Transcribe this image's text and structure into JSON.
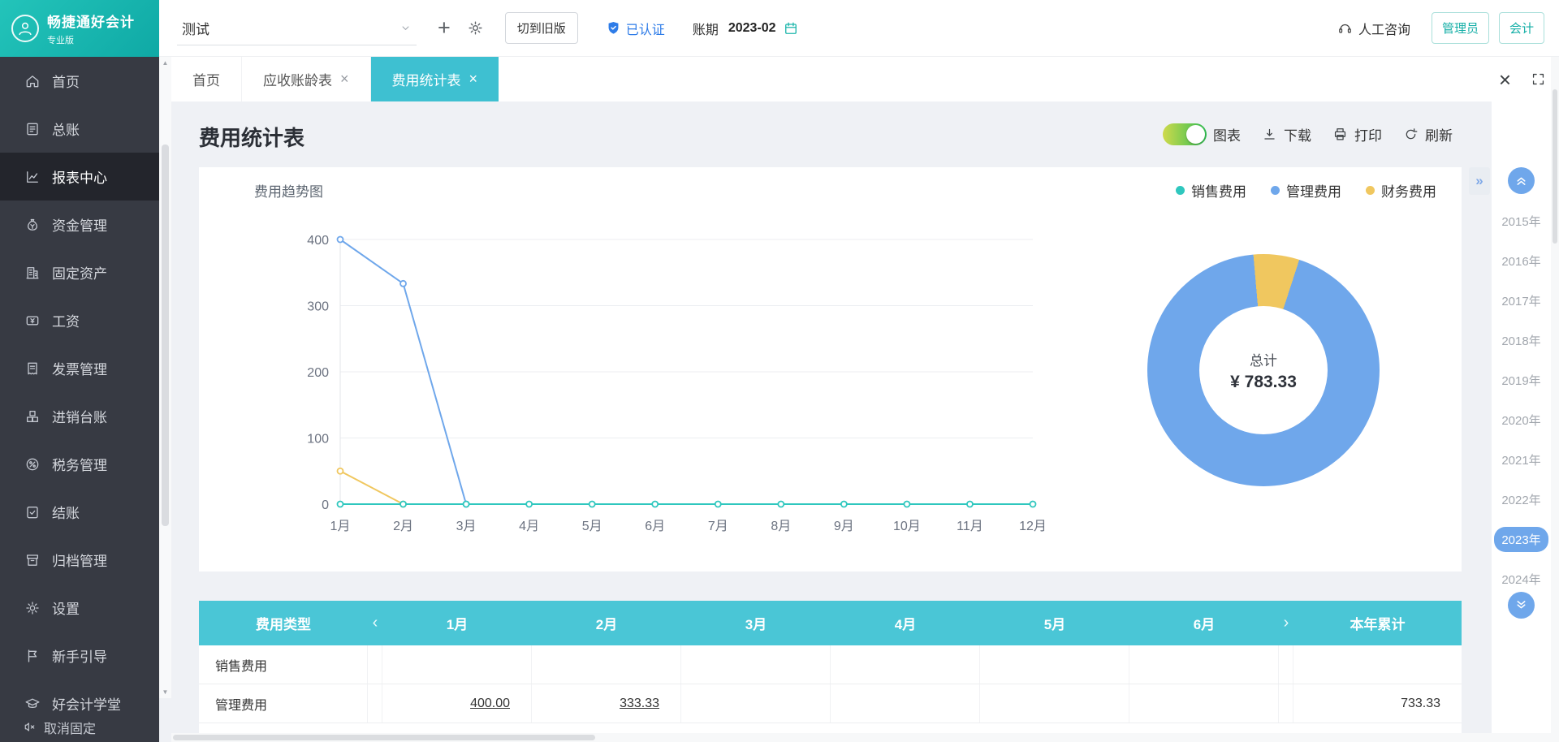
{
  "header": {
    "logo_title": "畅捷通好会计",
    "logo_subtitle": "专业版",
    "company": "测试",
    "switch_old": "切到旧版",
    "certified": "已认证",
    "period_label": "账期",
    "period_value": "2023-02",
    "support": "人工咨询",
    "admin": "管理员",
    "role": "会计"
  },
  "sidebar": {
    "items": [
      {
        "label": "首页",
        "icon": "home-icon",
        "active": false
      },
      {
        "label": "总账",
        "icon": "ledger-icon",
        "active": false
      },
      {
        "label": "报表中心",
        "icon": "report-icon",
        "active": true
      },
      {
        "label": "资金管理",
        "icon": "funds-icon",
        "active": false
      },
      {
        "label": "固定资产",
        "icon": "asset-icon",
        "active": false
      },
      {
        "label": "工资",
        "icon": "salary-icon",
        "active": false
      },
      {
        "label": "发票管理",
        "icon": "invoice-icon",
        "active": false
      },
      {
        "label": "进销台账",
        "icon": "inventory-icon",
        "active": false
      },
      {
        "label": "税务管理",
        "icon": "tax-icon",
        "active": false
      },
      {
        "label": "结账",
        "icon": "closing-icon",
        "active": false
      },
      {
        "label": "归档管理",
        "icon": "archive-icon",
        "active": false
      },
      {
        "label": "设置",
        "icon": "settings-icon",
        "active": false
      },
      {
        "label": "新手引导",
        "icon": "guide-icon",
        "active": false
      },
      {
        "label": "好会计学堂",
        "icon": "school-icon",
        "active": false
      }
    ],
    "unpin_label": "取消固定"
  },
  "tabs": [
    {
      "label": "首页",
      "closable": false,
      "active": false
    },
    {
      "label": "应收账龄表",
      "closable": true,
      "active": false
    },
    {
      "label": "费用统计表",
      "closable": true,
      "active": true
    }
  ],
  "page": {
    "title": "费用统计表",
    "toggle_label": "图表",
    "download": "下载",
    "print": "打印",
    "refresh": "刷新"
  },
  "chart_data": [
    {
      "type": "line",
      "title": "费用趋势图",
      "x": [
        "1月",
        "2月",
        "3月",
        "4月",
        "5月",
        "6月",
        "7月",
        "8月",
        "9月",
        "10月",
        "11月",
        "12月"
      ],
      "series": [
        {
          "name": "销售费用",
          "color": "#2FC7BE",
          "values": [
            0,
            0,
            0,
            0,
            0,
            0,
            0,
            0,
            0,
            0,
            0,
            0
          ]
        },
        {
          "name": "管理费用",
          "color": "#6FA7EB",
          "values": [
            400,
            333.33,
            0,
            null,
            null,
            null,
            null,
            null,
            null,
            null,
            null,
            null
          ]
        },
        {
          "name": "财务费用",
          "color": "#F0C75F",
          "values": [
            50,
            0,
            null,
            null,
            null,
            null,
            null,
            null,
            null,
            null,
            null,
            null
          ]
        }
      ],
      "ylim": [
        0,
        400
      ],
      "yticks": [
        0,
        100,
        200,
        300,
        400
      ],
      "grid": true,
      "legend_position": "top-right"
    },
    {
      "type": "pie",
      "center_label": "总计",
      "center_value": "¥ 783.33",
      "slices": [
        {
          "name": "财务费用",
          "value": 50,
          "color": "#F0C75F"
        },
        {
          "name": "管理费用",
          "value": 733.33,
          "color": "#6FA7EB"
        },
        {
          "name": "销售费用",
          "value": 0,
          "color": "#2FC7BE"
        }
      ]
    }
  ],
  "table": {
    "category_header": "费用类型",
    "months": [
      "1月",
      "2月",
      "3月",
      "4月",
      "5月",
      "6月"
    ],
    "total_header": "本年累计",
    "rows": [
      {
        "category": "销售费用",
        "monthly": [
          "",
          "",
          "",
          "",
          "",
          ""
        ],
        "total": ""
      },
      {
        "category": "管理费用",
        "monthly": [
          "400.00",
          "333.33",
          "",
          "",
          "",
          ""
        ],
        "total": "733.33"
      }
    ]
  },
  "year_panel": {
    "years": [
      "2015年",
      "2016年",
      "2017年",
      "2018年",
      "2019年",
      "2020年",
      "2021年",
      "2022年",
      "2023年",
      "2024年"
    ],
    "active_year": "2023年"
  },
  "colors": {
    "brand_teal": "#17B8B2",
    "tab_active": "#3EC0D1",
    "table_header": "#4AC6D6",
    "accent_blue": "#6FA7EB",
    "accent_yellow": "#F0C75F",
    "accent_teal": "#2FC7BE",
    "certified_blue": "#2E7CE8",
    "year_pill": "#6FA7EB"
  }
}
